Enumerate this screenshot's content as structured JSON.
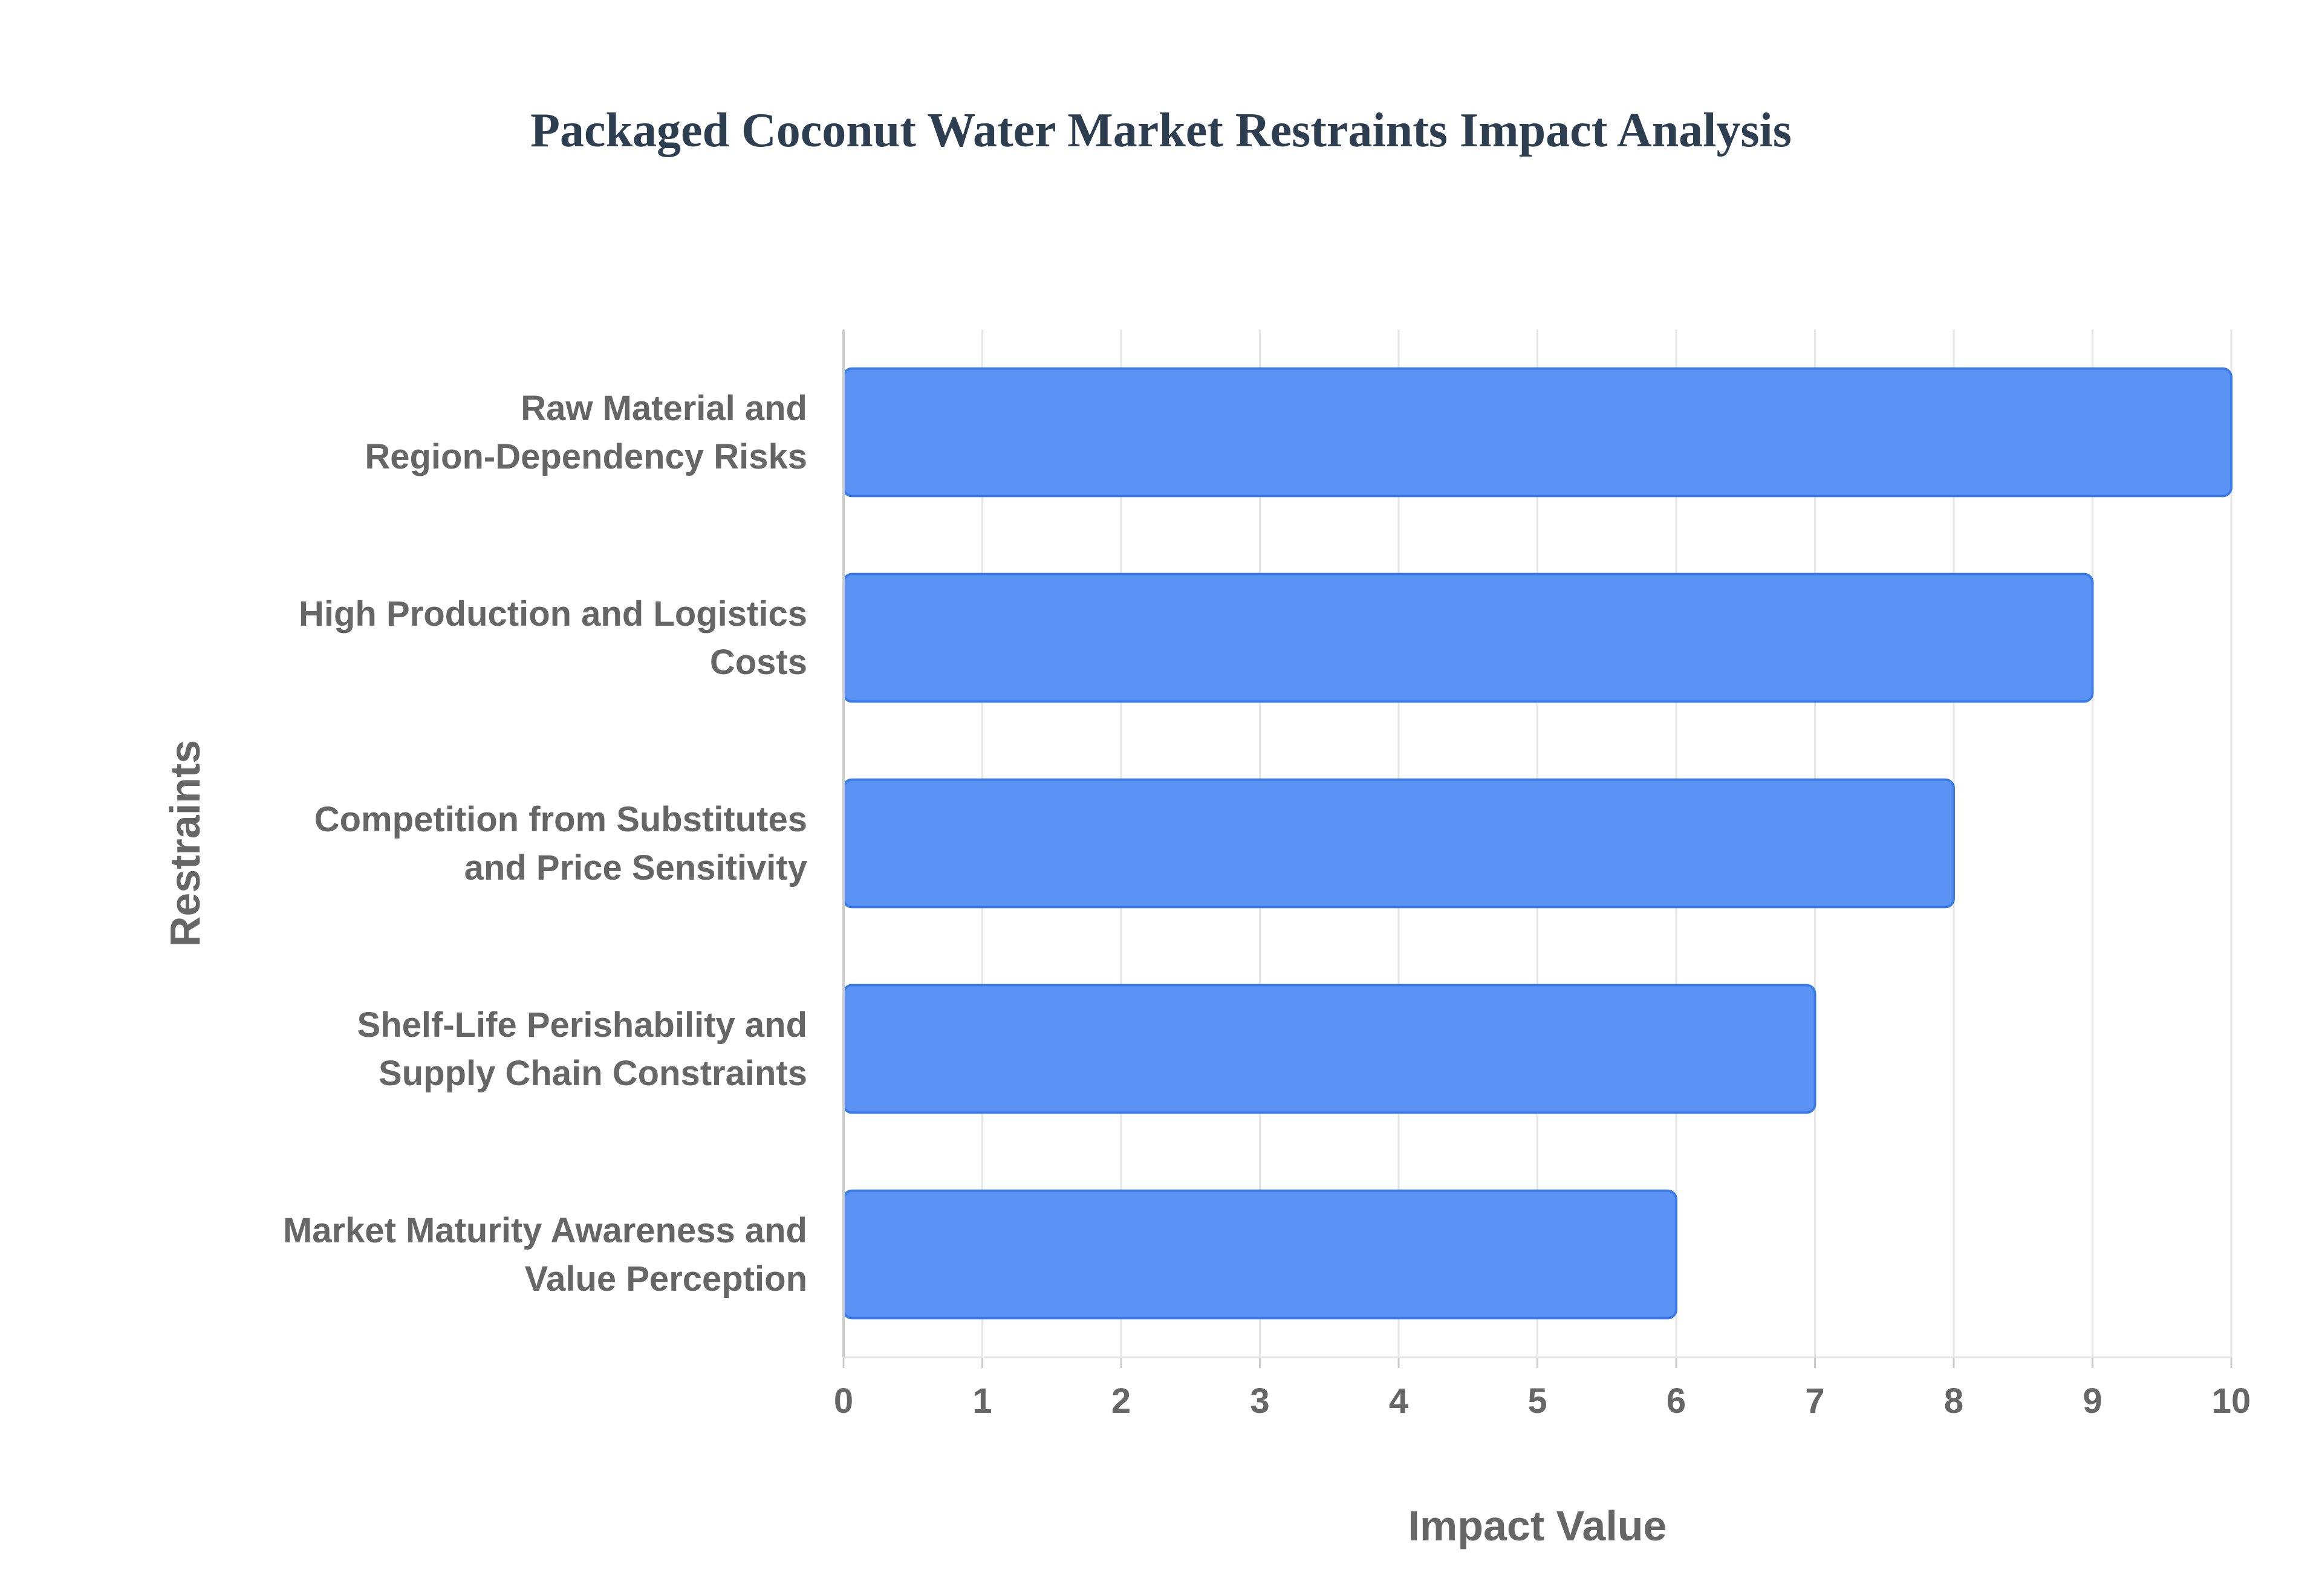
{
  "chart_data": {
    "type": "bar",
    "orientation": "horizontal",
    "title": "Packaged Coconut Water Market Restraints Impact Analysis",
    "xlabel": "Impact Value",
    "ylabel": "Restraints",
    "categories": [
      [
        "Raw Material and",
        "Region-Dependency Risks"
      ],
      [
        "High Production and Logistics",
        "Costs"
      ],
      [
        "Competition from Substitutes",
        "and Price Sensitivity"
      ],
      [
        "Shelf-Life Perishability and",
        "Supply Chain Constraints"
      ],
      [
        "Market Maturity Awareness and",
        "Value Perception"
      ]
    ],
    "values": [
      10,
      9,
      8,
      7,
      6
    ],
    "xlim": [
      0,
      10
    ],
    "xticks": [
      "0",
      "1",
      "2",
      "3",
      "4",
      "5",
      "6",
      "7",
      "8",
      "9",
      "10"
    ],
    "grid": true,
    "legend": "none",
    "colors": {
      "bar_fill": "#5b93f5",
      "bar_stroke": "#3a7be8",
      "grid": "#e6e6e6",
      "axis": "#cccccc",
      "title": "#2c3e50",
      "text": "#666666"
    }
  }
}
